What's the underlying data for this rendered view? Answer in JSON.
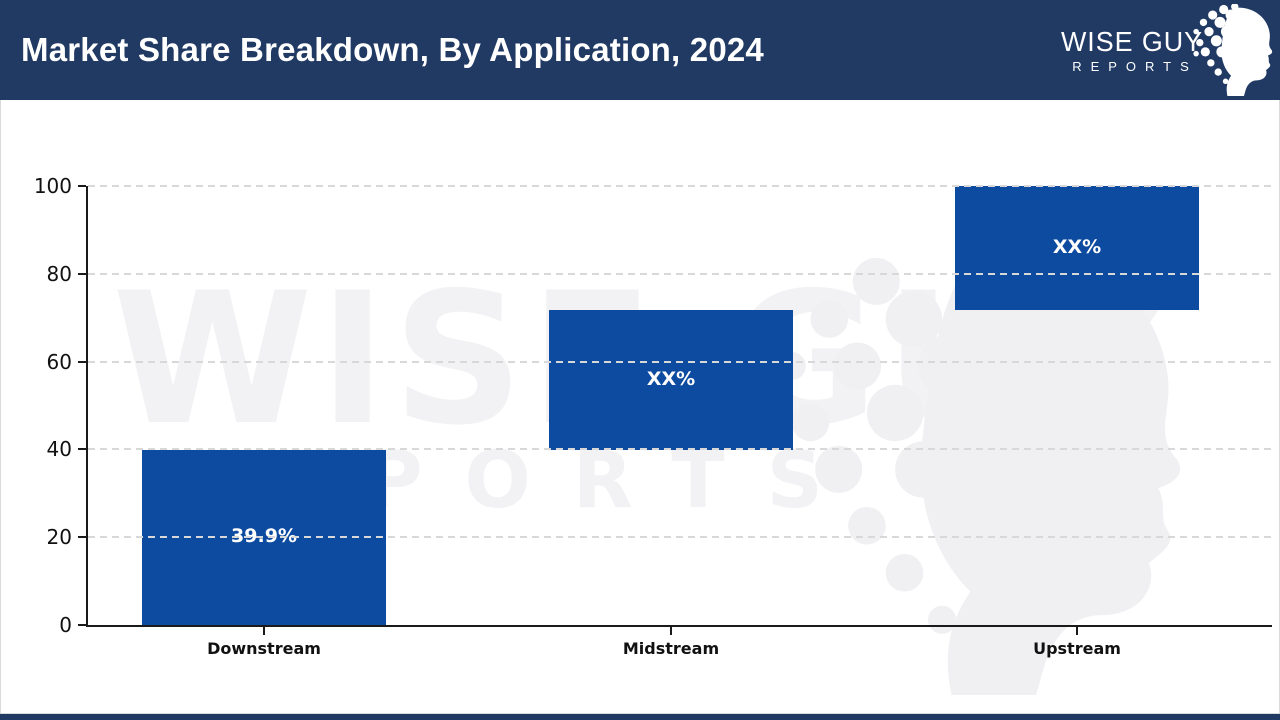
{
  "header": {
    "title": "Market Share Breakdown, By Application, 2024",
    "logo": {
      "line1": "WISE GUY",
      "line2": "REPORTS"
    }
  },
  "watermark": {
    "line1": "WISE GUY",
    "line2": "REPORTS"
  },
  "chart_data": {
    "type": "bar",
    "variant": "segment-breakdown-floating-bars",
    "title": "Market Share Breakdown, By Application, 2024",
    "categories": [
      "Downstream",
      "Midstream",
      "Upstream"
    ],
    "segments": [
      {
        "category": "Downstream",
        "start": 0,
        "end": 39.9,
        "display_label": "39.9%"
      },
      {
        "category": "Midstream",
        "start": 39.9,
        "end": 71.8,
        "display_label": "XX%"
      },
      {
        "category": "Upstream",
        "start": 71.8,
        "end": 100,
        "display_label": "XX%"
      }
    ],
    "xlabel": "",
    "ylabel": "",
    "ylim": [
      0,
      100
    ],
    "yticks": [
      0,
      20,
      40,
      60,
      80,
      100
    ],
    "grid": "horizontal-dashed",
    "legend": "none",
    "bar_color": "#0C4BA0",
    "bar_label_color": "#FFFFFF"
  },
  "colors": {
    "header_bg": "#213A64",
    "footer_bg": "#213A64",
    "bar": "#0C4BA0",
    "grid": "#D8D8D8",
    "axis": "#1A1A1A",
    "watermark": "#F2F2F4",
    "page_bg": "#FFFFFF"
  }
}
